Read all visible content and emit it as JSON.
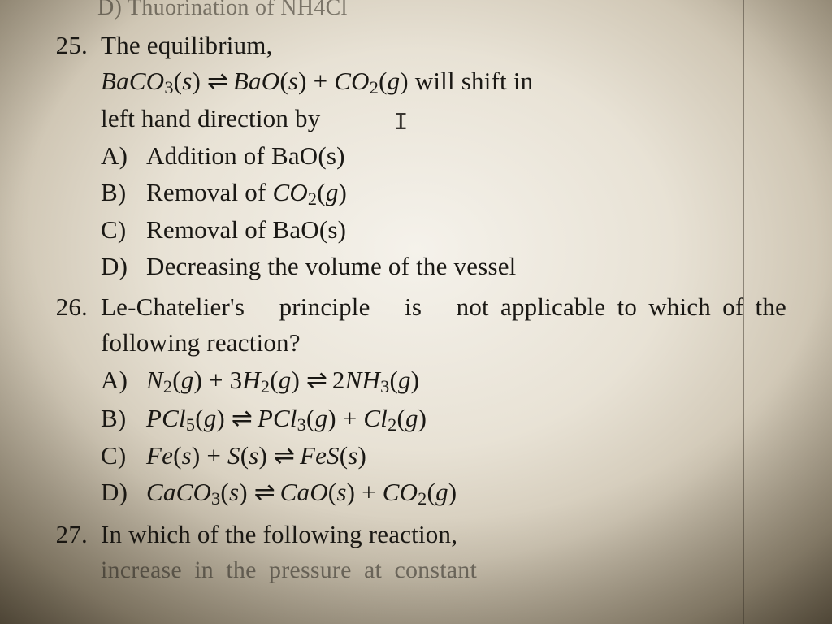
{
  "truncated_top_line": "D) Thuorination of NH4Cl",
  "cursor_glyph": "I",
  "questions": [
    {
      "number": "25.",
      "text_plain": "The equilibrium,",
      "continuation_html": "<span class='chem'><i>BaCO</i><sub>3</sub>(<i>s</i>) <span class='eqarrow'>⇌</span> <i>BaO</i>(<i>s</i>) + <i>CO</i><sub>2</sub>(<i>g</i>)</span> will shift in",
      "tail": "left hand direction by",
      "options": [
        {
          "label": "A)",
          "html": "Addition of BaO(s)"
        },
        {
          "label": "B)",
          "html": "Removal of <span class='chem'><i>CO</i><sub>2</sub>(<i>g</i>)</span>"
        },
        {
          "label": "C)",
          "html": "Removal of BaO(s)"
        },
        {
          "label": "D)",
          "html": "Decreasing the volume of the vessel"
        }
      ]
    },
    {
      "number": "26.",
      "text_html": "Le-Chatelier's &nbsp; principle &nbsp; is &nbsp; not applicable to which of the following reaction?",
      "options": [
        {
          "label": "A)",
          "html": "<span class='chem'><i>N</i><sub>2</sub>(<i>g</i>) + 3<i>H</i><sub>2</sub>(<i>g</i>) <span class='eqarrow'>⇌</span> 2<i>NH</i><sub>3</sub>(<i>g</i>)</span>"
        },
        {
          "label": "B)",
          "html": "<span class='chem'><i>PCl</i><sub>5</sub>(<i>g</i>) <span class='eqarrow'>⇌</span> <i>PCl</i><sub>3</sub>(<i>g</i>) + <i>Cl</i><sub>2</sub>(<i>g</i>)</span>"
        },
        {
          "label": "C)",
          "html": "<span class='chem'><i>Fe</i>(<i>s</i>) + <i>S</i>(<i>s</i>) <span class='eqarrow'>⇌</span> <i>FeS</i>(<i>s</i>)</span>"
        },
        {
          "label": "D)",
          "html": "<span class='chem'><i>CaCO</i><sub>3</sub>(<i>s</i>) <span class='eqarrow'>⇌</span> <i>CaO</i>(<i>s</i>) + <i>CO</i><sub>2</sub>(<i>g</i>)</span>"
        }
      ]
    },
    {
      "number": "27.",
      "text_html": "In which of the following reaction,",
      "partial_next": "increase &nbsp;in&nbsp; the &nbsp;pressure &nbsp;at &nbsp;constant"
    }
  ]
}
